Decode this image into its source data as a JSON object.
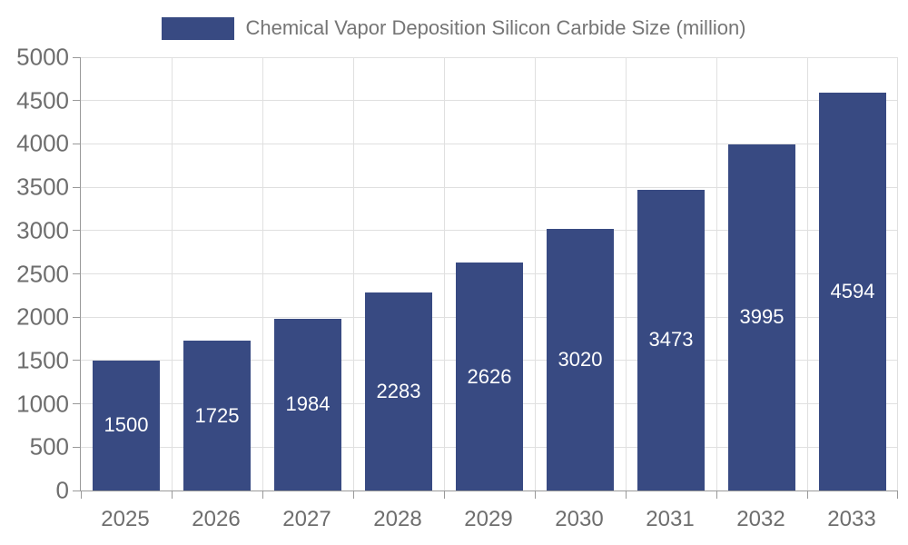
{
  "legend": {
    "label": "Chemical Vapor Deposition Silicon Carbide Size (million)"
  },
  "chart_data": {
    "type": "bar",
    "title": "Chemical Vapor Deposition Silicon Carbide Size (million)",
    "categories": [
      "2025",
      "2026",
      "2027",
      "2028",
      "2029",
      "2030",
      "2031",
      "2032",
      "2033"
    ],
    "values": [
      1500,
      1725,
      1984,
      2283,
      2626,
      3020,
      3473,
      3995,
      4594
    ],
    "xlabel": "",
    "ylabel": "",
    "ylim": [
      0,
      5000
    ],
    "yticks": [
      0,
      500,
      1000,
      1500,
      2000,
      2500,
      3000,
      3500,
      4000,
      4500,
      5000
    ],
    "grid": true,
    "legend_position": "top",
    "colors": {
      "bar": "#384A82",
      "value_label": "#ffffff",
      "axis_label": "#6e6e6e",
      "legend_label": "#757575",
      "grid_line": "#e0e0e0",
      "axis_line": "#999999",
      "background": "#ffffff"
    }
  }
}
